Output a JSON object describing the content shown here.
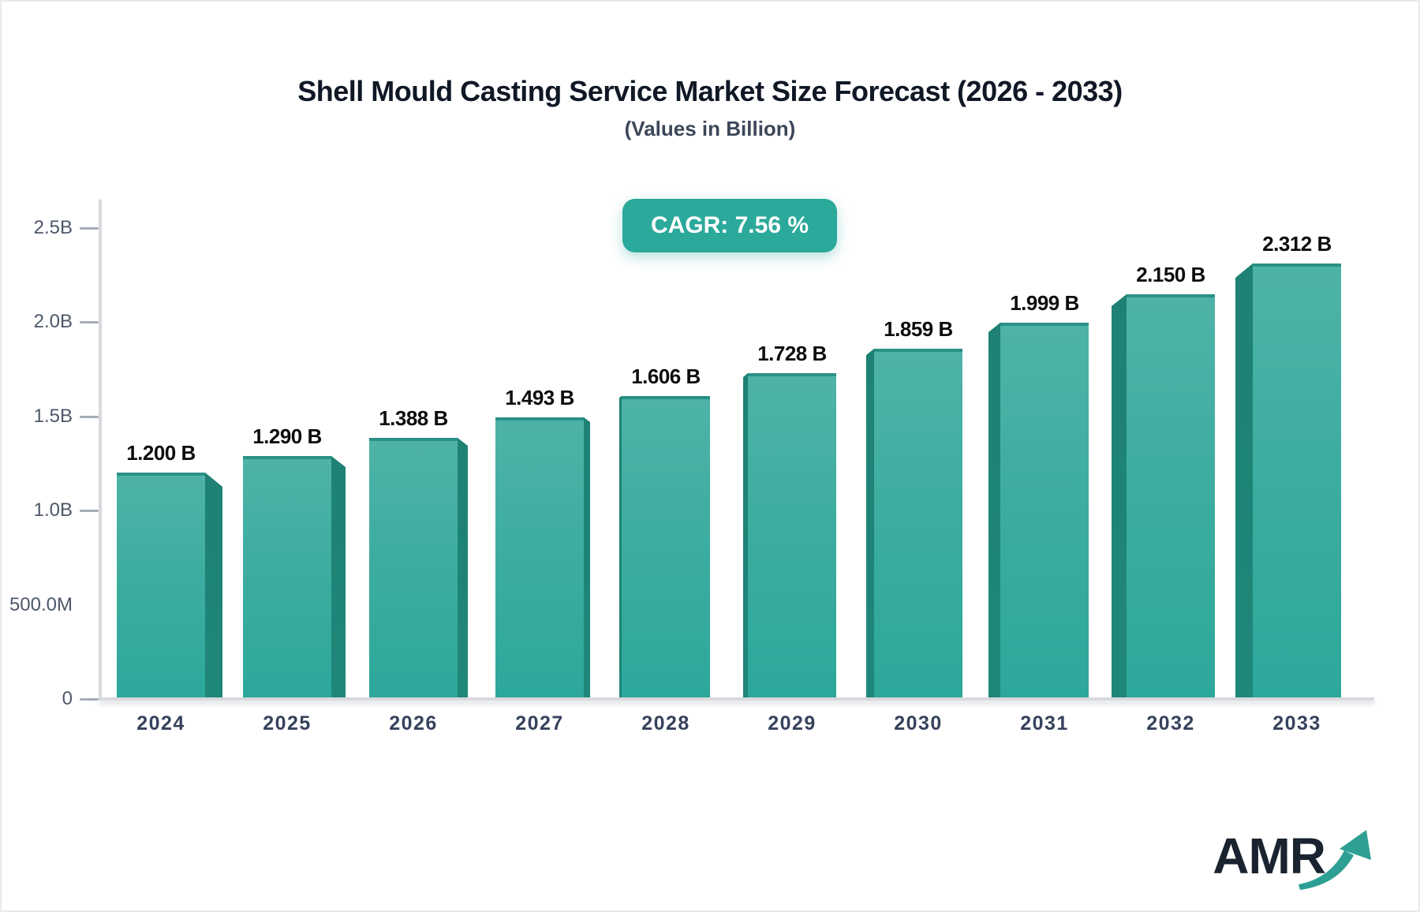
{
  "title": "Shell Mould Casting Service Market Size Forecast (2026 - 2033)",
  "subtitle": "(Values in Billion)",
  "cagr_badge": "CAGR: 7.56 %",
  "logo": {
    "text": "AMR"
  },
  "colors": {
    "accent_teal": "#2ba99b",
    "bar_face_top": "#4fb3a7",
    "bar_face_bottom": "#2ca89a",
    "bar_bevel_dark": "#1e8173",
    "bar_top_rim": "#2b9186",
    "axis_gray": "#d7d9dd",
    "tick_dash_gray": "#a6acb6",
    "y_label_gray": "#4d586a",
    "x_label_navy": "#36425c",
    "value_label_black": "#0d0d0d",
    "title_dark": "#101826",
    "logo_dark": "#1a2430"
  },
  "chart_data": {
    "type": "bar",
    "title": "Shell Mould Casting Service Market Size Forecast (2026 - 2033)",
    "subtitle": "(Values in Billion)",
    "xlabel": "",
    "ylabel": "",
    "unit": "Billion USD",
    "categories": [
      "2024",
      "2025",
      "2026",
      "2027",
      "2028",
      "2029",
      "2030",
      "2031",
      "2032",
      "2033"
    ],
    "values": [
      1.2,
      1.29,
      1.388,
      1.493,
      1.606,
      1.728,
      1.859,
      1.999,
      2.15,
      2.312
    ],
    "value_labels": [
      "1.200 B",
      "1.290 B",
      "1.388 B",
      "1.493 B",
      "1.606 B",
      "1.728 B",
      "1.859 B",
      "1.999 B",
      "2.150 B",
      "2.312 B"
    ],
    "ylim": [
      0,
      2.5
    ],
    "yticks": [
      {
        "label": "2.5B",
        "value": 2.5,
        "dash": true
      },
      {
        "label": "2.0B",
        "value": 2.0,
        "dash": true
      },
      {
        "label": "1.5B",
        "value": 1.5,
        "dash": true
      },
      {
        "label": "1.0B",
        "value": 1.0,
        "dash": true
      },
      {
        "label": "500.0M",
        "value": 0.5,
        "dash": false
      },
      {
        "label": "0",
        "value": 0.0,
        "dash": true
      }
    ],
    "grid": false,
    "legend": "none",
    "annotation": "CAGR: 7.56 %"
  }
}
